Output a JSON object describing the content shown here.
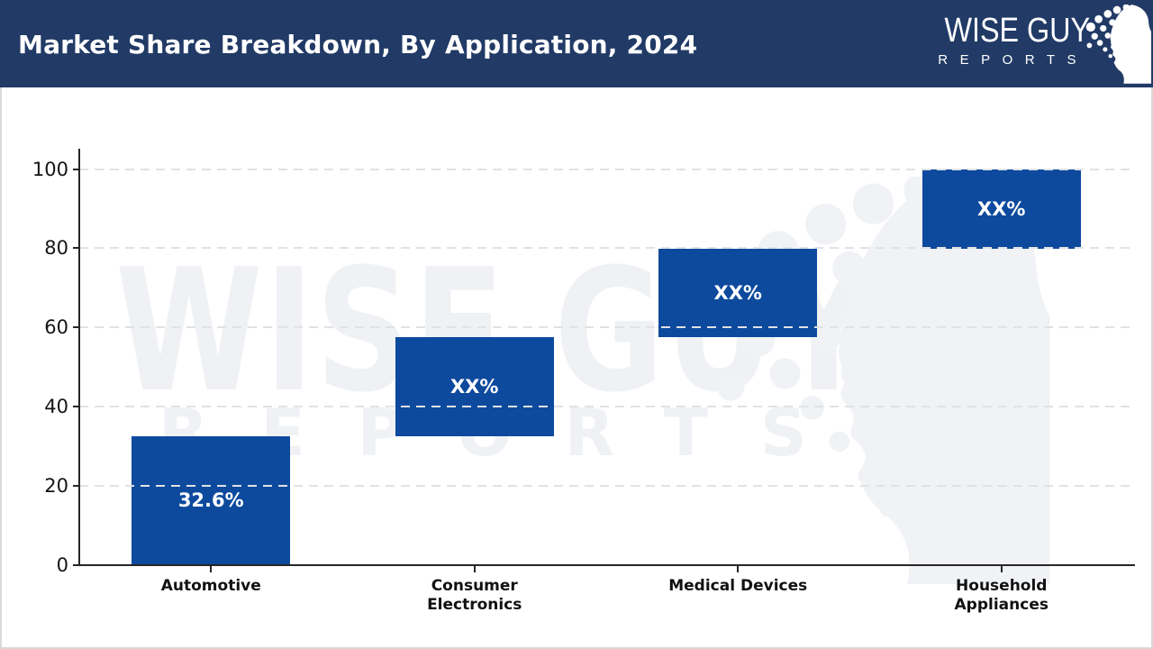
{
  "chart_data": {
    "type": "bar",
    "subtype": "waterfall",
    "title": "Market Share Breakdown, By Application, 2024",
    "categories": [
      [
        "Automotive"
      ],
      [
        "Consumer",
        "Electronics"
      ],
      [
        "Medical Devices"
      ],
      [
        "Household",
        "Appliances"
      ]
    ],
    "segments": [
      {
        "name": "Automotive",
        "start": 0,
        "end": 32.6,
        "label": "32.6%"
      },
      {
        "name": "Consumer Electronics",
        "start": 32.6,
        "end": 57.5,
        "label": "XX%"
      },
      {
        "name": "Medical Devices",
        "start": 57.5,
        "end": 79.8,
        "label": "XX%"
      },
      {
        "name": "Household Appliances",
        "start": 79.8,
        "end": 100,
        "label": "XX%"
      }
    ],
    "yticks": [
      0,
      20,
      40,
      60,
      80,
      100
    ],
    "ylim": [
      0,
      105
    ],
    "xlabel": "",
    "ylabel": "",
    "grid": "horizontal-dashed",
    "legend": "none",
    "bar_color": "#0d4a9e",
    "bar_label_color": "#ffffff"
  },
  "header": {
    "logo": {
      "line1": "WISE GUY",
      "line2": "REPORTS"
    }
  },
  "watermark": {
    "line1": "WISE GUY",
    "line2": "REPORTS"
  },
  "colors": {
    "header_bg": "#213a66",
    "bar": "#0d4a9e",
    "axis": "#262626",
    "grid": "#e0e2e4",
    "watermark": "#eff1f4",
    "border": "#d9d9d9"
  }
}
